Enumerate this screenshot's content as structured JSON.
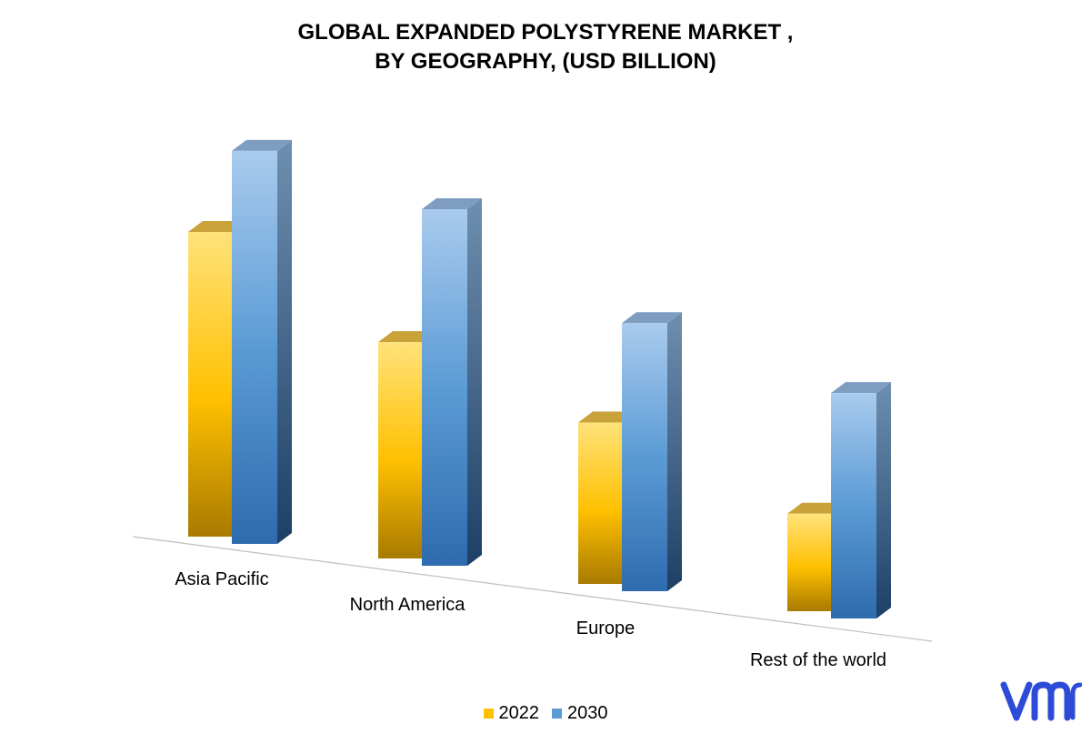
{
  "chart_data": {
    "type": "bar",
    "title_lines": [
      "GLOBAL EXPANDED POLYSTYRENE MARKET ,",
      "BY GEOGRAPHY, (USD BILLION)"
    ],
    "categories": [
      "Asia Pacific",
      "North America",
      "Europe",
      "Rest of the world"
    ],
    "series": [
      {
        "name": "2022",
        "values": [
          10.0,
          7.1,
          5.3,
          3.2
        ],
        "color": "#FFC000"
      },
      {
        "name": "2030",
        "values": [
          12.9,
          11.7,
          8.8,
          7.4
        ],
        "color": "#5B9BD5"
      }
    ],
    "ylim": [
      0,
      14
    ],
    "grid": false,
    "legend_position": "bottom",
    "three_d": true
  },
  "logo": {
    "text": "vmr",
    "color": "#2D4BD6"
  }
}
